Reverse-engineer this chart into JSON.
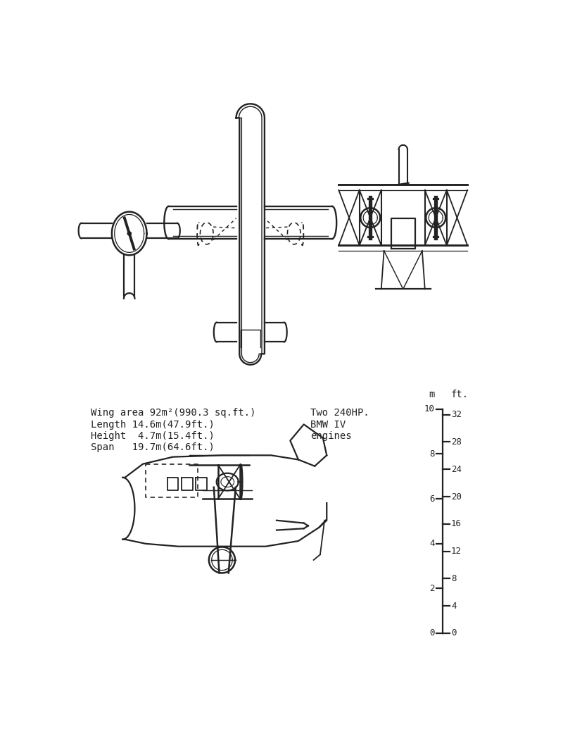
{
  "bg_color": "#ffffff",
  "line_color": "#222222",
  "specs_line1": "Wing area 92m²(990.3 sq.ft.)",
  "specs_line2": "Length 14.6m(47.9ft.)",
  "specs_line3": "Height  4.7m(15.4ft.)",
  "specs_line4": "Span   19.7m(64.6ft.)",
  "engine_text1": "Two 240HP.",
  "engine_text2": "BMW IV",
  "engine_text3": "engines",
  "scale_m_label": "m",
  "scale_ft_label": "ft.",
  "scale_m_ticks": [
    0,
    2,
    4,
    6,
    8,
    10
  ],
  "scale_ft_ticks": [
    0,
    4,
    8,
    12,
    16,
    20,
    24,
    28,
    32
  ],
  "font_family": "monospace",
  "lw": 1.3
}
